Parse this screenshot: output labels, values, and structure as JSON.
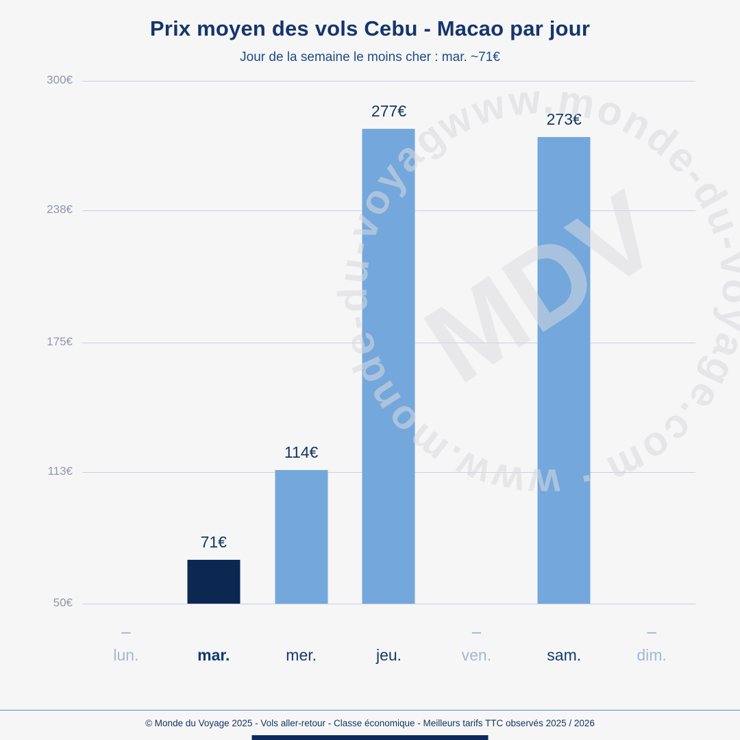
{
  "header": {
    "title": "Prix moyen des vols Cebu - Macao par jour",
    "subtitle": "Jour de la semaine le moins cher : mar. ~71€"
  },
  "chart_data": {
    "type": "bar",
    "categories": [
      "lun.",
      "mar.",
      "mer.",
      "jeu.",
      "ven.",
      "sam.",
      "dim."
    ],
    "values": [
      null,
      71,
      114,
      277,
      null,
      273,
      null
    ],
    "unit": "€",
    "missing_marker": "–",
    "yticks": [
      300,
      238,
      175,
      113,
      50
    ],
    "ytick_labels": [
      "300€",
      "238€",
      "175€",
      "113€",
      "50€"
    ],
    "ylim": [
      50,
      300
    ],
    "highlight_category": "mar.",
    "title": "Prix moyen des vols Cebu - Macao par jour",
    "xlabel": "",
    "ylabel": "",
    "grid": true,
    "colors": {
      "bar": "#74a8dc",
      "bar_highlight": "#0d2753",
      "grid": "#c9cfdd",
      "tick_label": "#8e97ab",
      "day_active": "#123a6d",
      "day_inactive": "#a4b8d0",
      "title": "#15366b",
      "value_label": "#12365f"
    }
  },
  "watermark": {
    "circle_text": "www.monde-du-voyage.com · www.monde-du-voyage.com ·",
    "center_text": "MDV"
  },
  "footer": {
    "text": "© Monde du Voyage 2025 - Vols aller-retour - Classe économique - Meilleurs tarifs TTC observés 2025 / 2026"
  }
}
